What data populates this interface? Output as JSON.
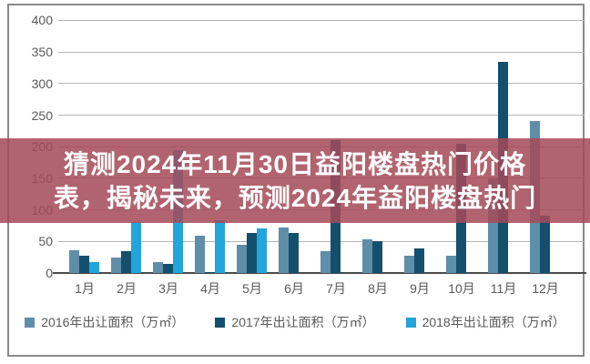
{
  "overlay": {
    "line1": "猜测2024年11月30日益阳楼盘热门价格",
    "line2": "表，揭秘未来，预测2024年益阳楼盘热门",
    "bg_color": "rgba(164,75,89,0.86)",
    "text_color": "#ffffff"
  },
  "chart_data": {
    "type": "bar",
    "title": "",
    "categories": [
      "1月",
      "2月",
      "3月",
      "4月",
      "5月",
      "6月",
      "7月",
      "8月",
      "9月",
      "10月",
      "11月",
      "12月"
    ],
    "series": [
      {
        "name": "2016年出让面积（万㎡）",
        "color": "#5f8ea9",
        "values": [
          36,
          24,
          18,
          59,
          45,
          72,
          34,
          54,
          28,
          27,
          150,
          241
        ]
      },
      {
        "name": "2017年出让面积（万㎡）",
        "color": "#14506e",
        "values": [
          27,
          34,
          15,
          2,
          63,
          63,
          210,
          50,
          39,
          205,
          335,
          91
        ]
      },
      {
        "name": "2018年出让面积（万㎡）",
        "color": "#22a5da",
        "values": [
          18,
          80,
          195,
          84,
          70,
          0,
          0,
          0,
          0,
          0,
          0,
          0
        ]
      }
    ],
    "ylim": [
      0,
      400
    ],
    "yticks": [
      0,
      50,
      100,
      150,
      200,
      250,
      300,
      350,
      400
    ],
    "grid": true,
    "legend_position": "bottom",
    "axis_text_color": "#595959",
    "gridline_color": "#b5b5b5"
  }
}
